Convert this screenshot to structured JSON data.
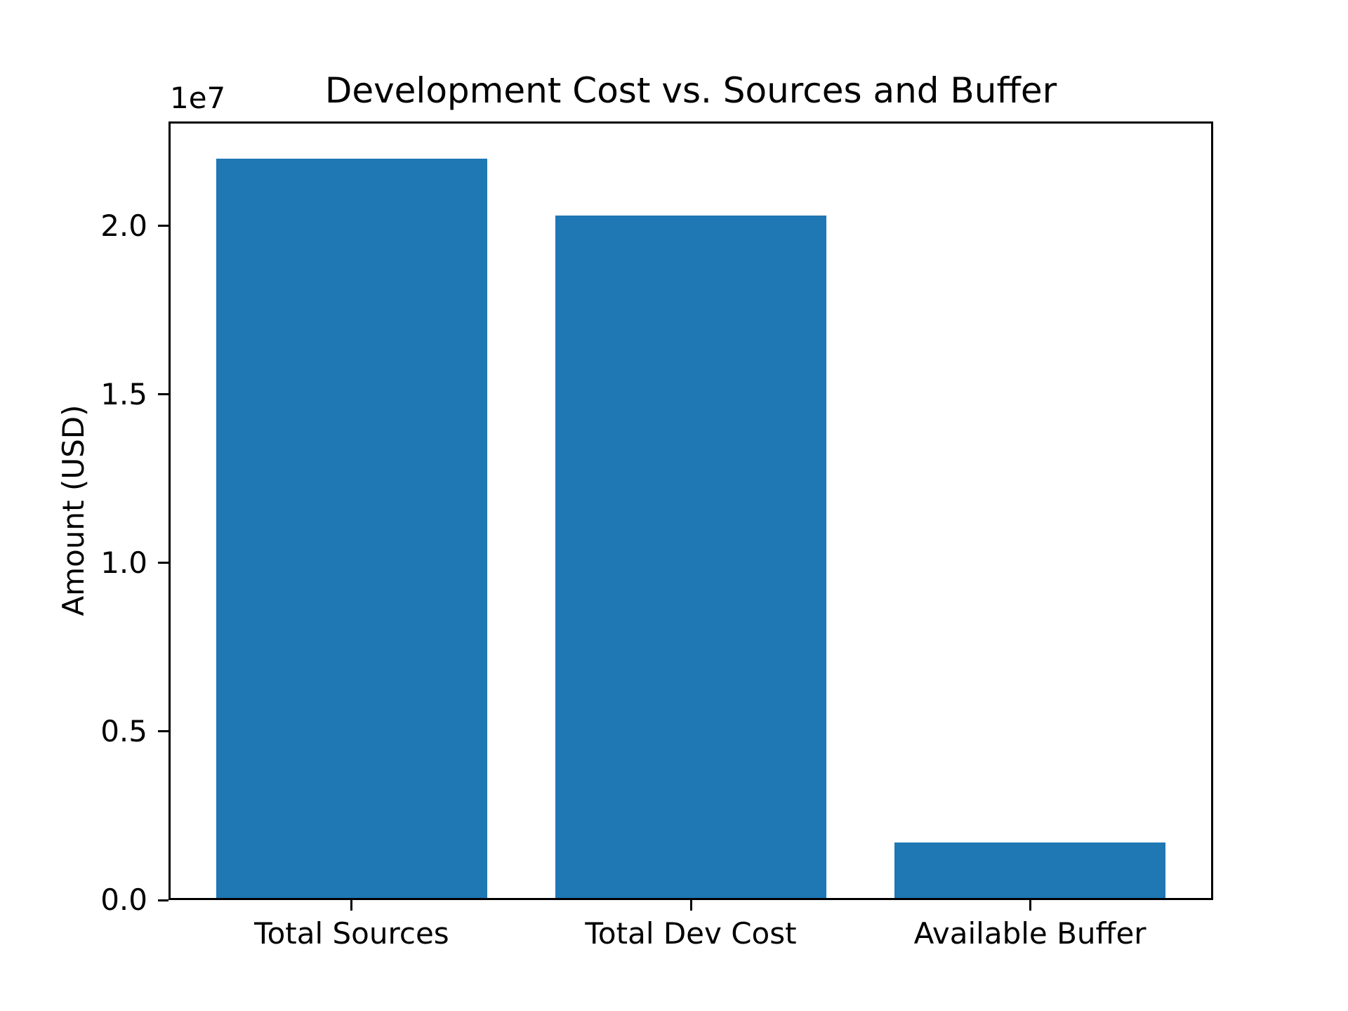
{
  "chart_data": {
    "type": "bar",
    "title": "Development Cost vs. Sources and Buffer",
    "ylabel": "Amount (USD)",
    "xlabel": "",
    "offset_text": "1e7",
    "categories": [
      "Total Sources",
      "Total Dev Cost",
      "Available Buffer"
    ],
    "values": [
      22000000,
      20300000,
      1700000
    ],
    "ylim": [
      0,
      23100000
    ],
    "yticks": {
      "values": [
        0,
        5000000,
        10000000,
        15000000,
        20000000
      ],
      "labels": [
        "0.0",
        "0.5",
        "1.0",
        "1.5",
        "2.0"
      ]
    },
    "bar_color": "#1f77b4",
    "bar_width_fraction": 0.8,
    "grid": false,
    "legend_position": "none"
  }
}
